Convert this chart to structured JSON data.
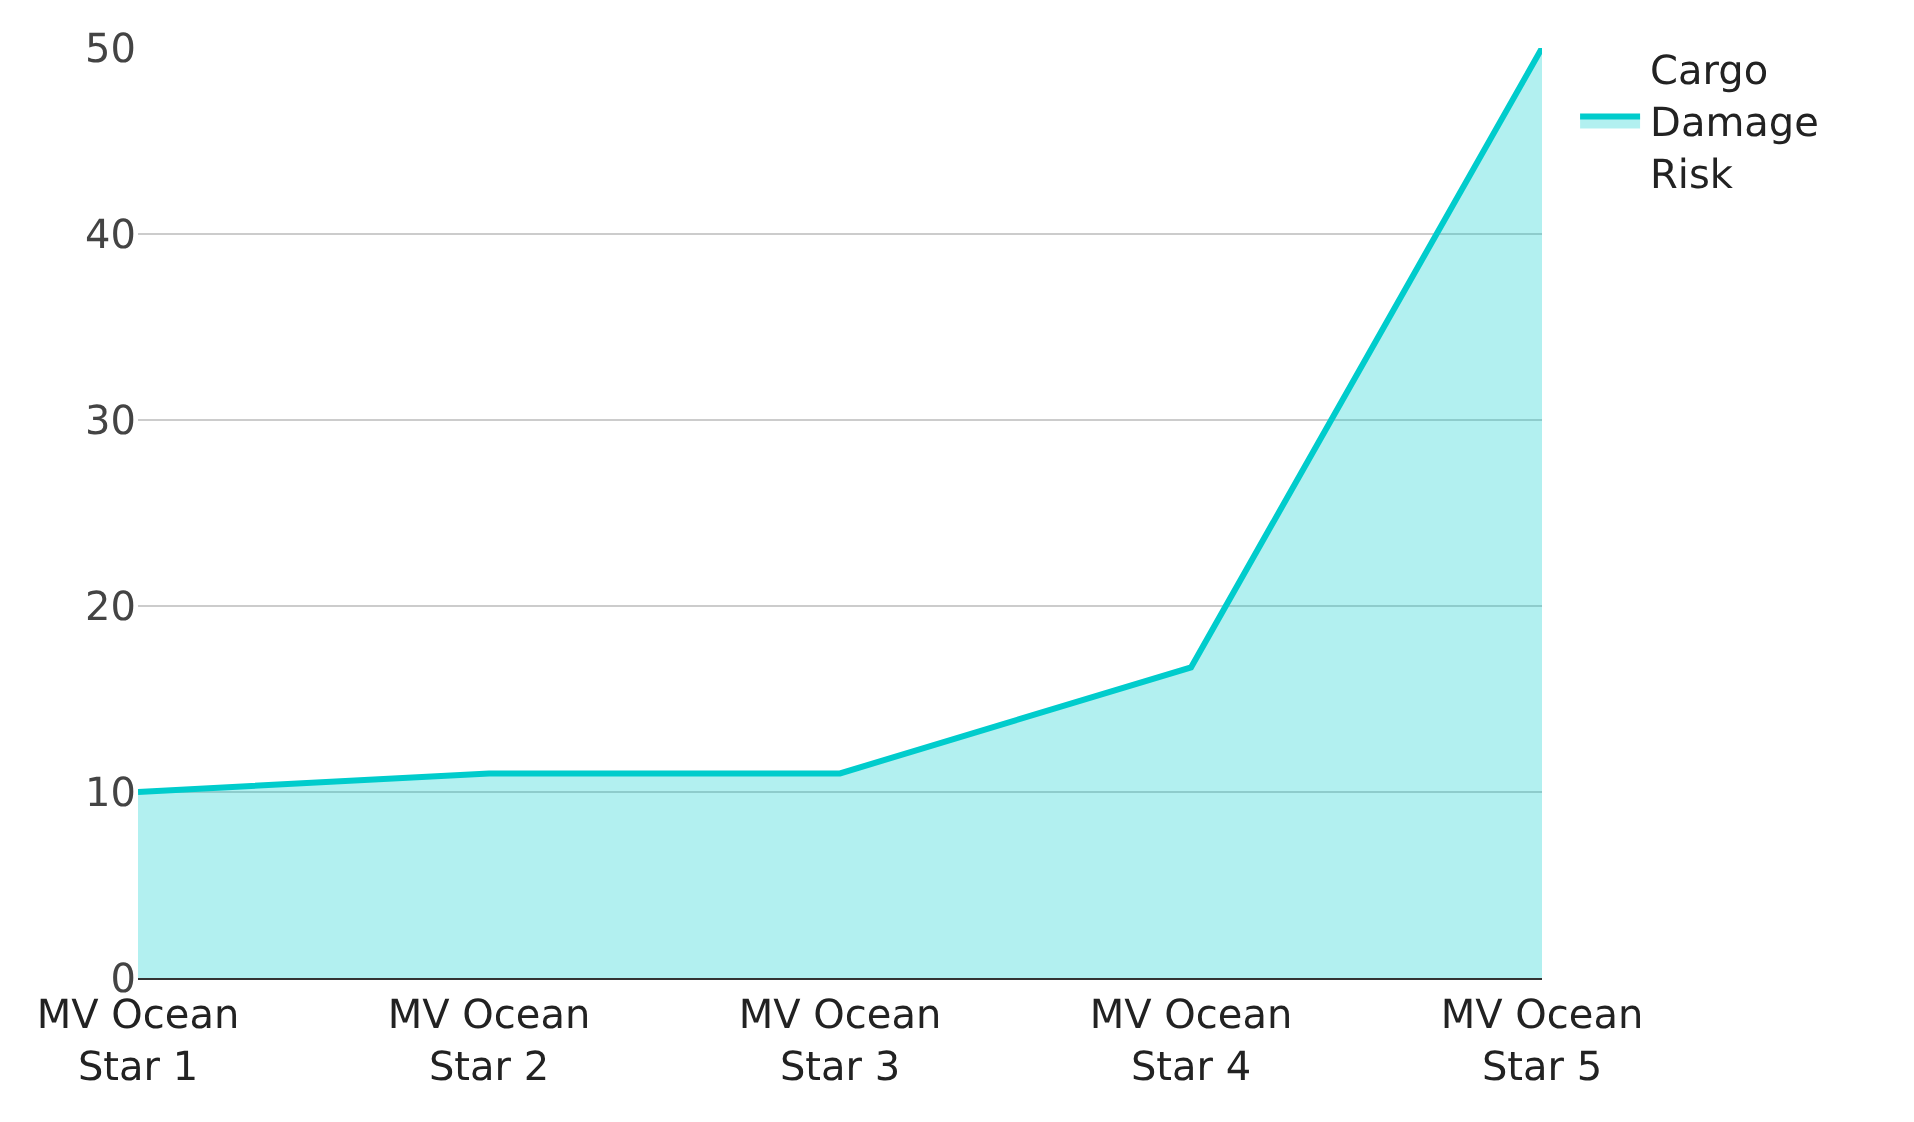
{
  "chart_data": {
    "type": "area",
    "categories": [
      "MV Ocean Star 1",
      "MV Ocean Star 2",
      "MV Ocean Star 3",
      "MV Ocean Star 4",
      "MV Ocean Star 5"
    ],
    "series": [
      {
        "name": "Cargo Damage Risk",
        "color": "#00cccc",
        "values": [
          10,
          11,
          11,
          16.7,
          50
        ]
      }
    ],
    "ylim": [
      0,
      50
    ],
    "yticks": [
      0,
      10,
      20,
      30,
      40,
      50
    ],
    "grid": "y",
    "legend": "top right",
    "marker": "none",
    "line_style": "solid"
  }
}
